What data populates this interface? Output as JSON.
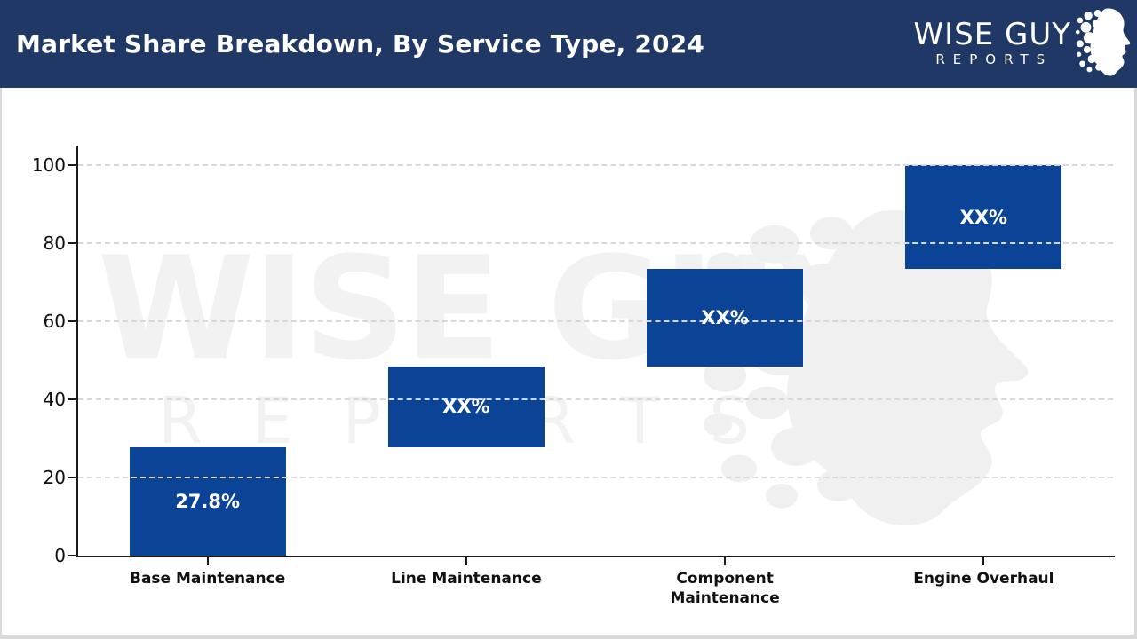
{
  "header": {
    "title": "Market Share Breakdown, By Service Type, 2024",
    "logo": {
      "line1": "WISE GUY",
      "line2": "REPORTS"
    }
  },
  "watermark": {
    "line1": "WISE GUY",
    "line2": "REPORTS"
  },
  "colors": {
    "header_bg": "#203865",
    "bar": "#0b4397",
    "grid": "#d8d8d8",
    "axis": "#1a1a1a",
    "watermark": "#f2f2f2",
    "frame_edge": "#d9d9d9",
    "bar_label_text": "#ffffff"
  },
  "chart_data": {
    "type": "bar",
    "subtype": "waterfall",
    "title": "Market Share Breakdown, By Service Type, 2024",
    "categories": [
      "Base Maintenance",
      "Line Maintenance",
      "Component Maintenance",
      "Engine Overhaul"
    ],
    "segments": [
      {
        "category": "Base Maintenance",
        "start": 0,
        "end": 27.8,
        "label": "27.8%"
      },
      {
        "category": "Line Maintenance",
        "start": 27.8,
        "end": 48.4,
        "label": "XX%"
      },
      {
        "category": "Component Maintenance",
        "start": 48.4,
        "end": 73.4,
        "label": "XX%"
      },
      {
        "category": "Engine Overhaul",
        "start": 73.4,
        "end": 100,
        "label": "XX%"
      }
    ],
    "bar_labels": [
      "27.8%",
      "XX%",
      "XX%",
      "XX%"
    ],
    "xlabel": "",
    "ylabel": "",
    "ylim": [
      0,
      100
    ],
    "yticks": [
      0,
      20,
      40,
      60,
      80,
      100
    ],
    "grid": "horizontal-dashed",
    "legend": "none",
    "bar_color": "#0b4397"
  }
}
